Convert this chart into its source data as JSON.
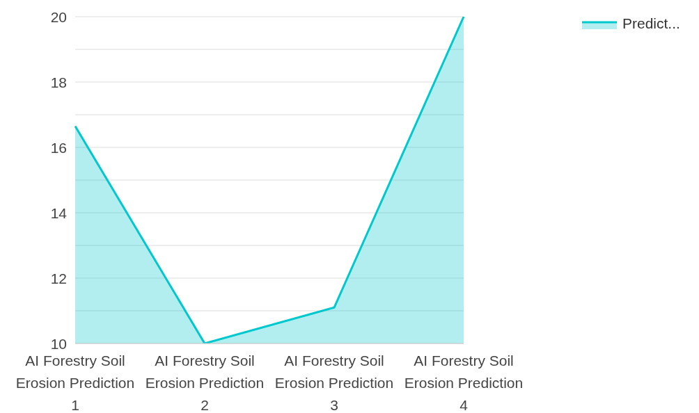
{
  "chart_data": {
    "type": "area",
    "categories": [
      "AI Forestry Soil Erosion Prediction 1",
      "AI Forestry Soil Erosion Prediction 2",
      "AI Forestry Soil Erosion Prediction 3",
      "AI Forestry Soil Erosion Prediction 4"
    ],
    "series": [
      {
        "name": "Predict...",
        "color": "#00c8cc",
        "values": [
          16.65,
          10,
          11.1,
          20
        ]
      }
    ],
    "ylim": [
      10,
      20
    ],
    "yticks": [
      10,
      {
        "value": 11,
        "label": null
      },
      12,
      {
        "value": 13,
        "label": null
      },
      14,
      {
        "value": 15,
        "label": null
      },
      16,
      {
        "value": 17,
        "label": null
      },
      18,
      {
        "value": 19,
        "label": null
      },
      20
    ],
    "grid": "y",
    "legend": "top right",
    "marker": "none",
    "line_style": "solid"
  }
}
